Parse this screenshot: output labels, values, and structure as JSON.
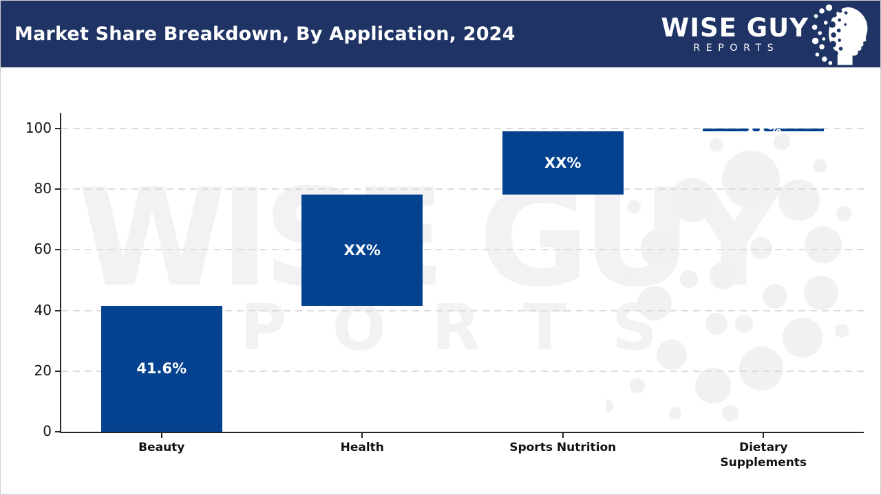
{
  "header": {
    "title": "Market Share Breakdown, By Application, 2024",
    "bg_color": "#1f3464",
    "logo": {
      "wordmark": "WISE GUY",
      "subtext": "REPORTS"
    }
  },
  "watermark": {
    "line1": "WISE GUY",
    "line2": "PORTS"
  },
  "chart_data": {
    "type": "bar",
    "variant": "waterfall",
    "title": "Market Share Breakdown, By Application, 2024",
    "categories": [
      "Beauty",
      "Health",
      "Sports Nutrition",
      "Dietary Supplements"
    ],
    "category_tick_labels": [
      "Beauty",
      "Health",
      "Sports Nutrition",
      "Dietary\nSupplements"
    ],
    "segments": [
      {
        "category": "Beauty",
        "start": 0,
        "end": 41.6,
        "value_approx": 41.6,
        "label": "41.6%"
      },
      {
        "category": "Health",
        "start": 41.6,
        "end": 78.2,
        "value_approx": 36.6,
        "label": "XX%"
      },
      {
        "category": "Sports Nutrition",
        "start": 78.2,
        "end": 99.1,
        "value_approx": 20.9,
        "label": "XX%"
      },
      {
        "category": "Dietary Supplements",
        "start": 99.1,
        "end": 100,
        "value_approx": 0.9,
        "label": "XX%"
      }
    ],
    "xlabel": "",
    "ylabel": "",
    "ylim": [
      0,
      100
    ],
    "yticks": [
      0,
      20,
      40,
      60,
      80,
      100
    ],
    "grid": "horizontal-dashed",
    "legend": "none",
    "bar_color": "#04418f",
    "bar_label_color": "#ffffff",
    "axis_color": "#262626",
    "gridline_color": "#dcdcdc",
    "header_color": "#1f3464"
  }
}
